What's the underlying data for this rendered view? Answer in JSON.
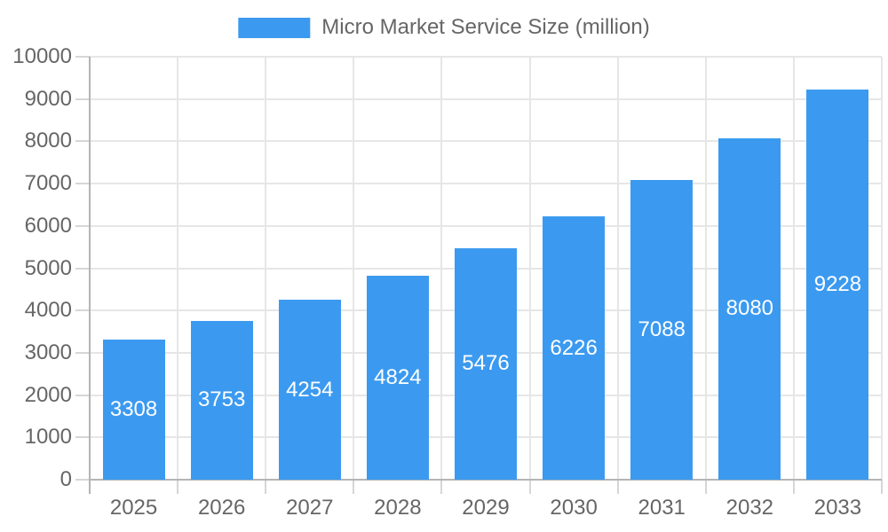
{
  "legend": {
    "label": "Micro Market Service Size (million)"
  },
  "colors": {
    "bar": "#3b9af0",
    "axis_line": "#b4b4b4",
    "gridline": "#e6e6e6",
    "tick_mark": "#d6d6d6",
    "tick_label": "#666666",
    "value_label": "#ffffff",
    "background": "#ffffff"
  },
  "chart_data": {
    "type": "bar",
    "title": "Micro Market Service Size (million)",
    "categories": [
      "2025",
      "2026",
      "2027",
      "2028",
      "2029",
      "2030",
      "2031",
      "2032",
      "2033"
    ],
    "series": [
      {
        "name": "Micro Market Service Size (million)",
        "values": [
          3308,
          3753,
          4254,
          4824,
          5476,
          6226,
          7088,
          8080,
          9228
        ]
      }
    ],
    "xlabel": "",
    "ylabel": "",
    "ylim": [
      0,
      10000
    ],
    "ytick_interval": 1000,
    "yticks": [
      0,
      1000,
      2000,
      3000,
      4000,
      5000,
      6000,
      7000,
      8000,
      9000,
      10000
    ],
    "grid": true,
    "legend_position": "top-center",
    "value_label_position": "inside-center"
  }
}
